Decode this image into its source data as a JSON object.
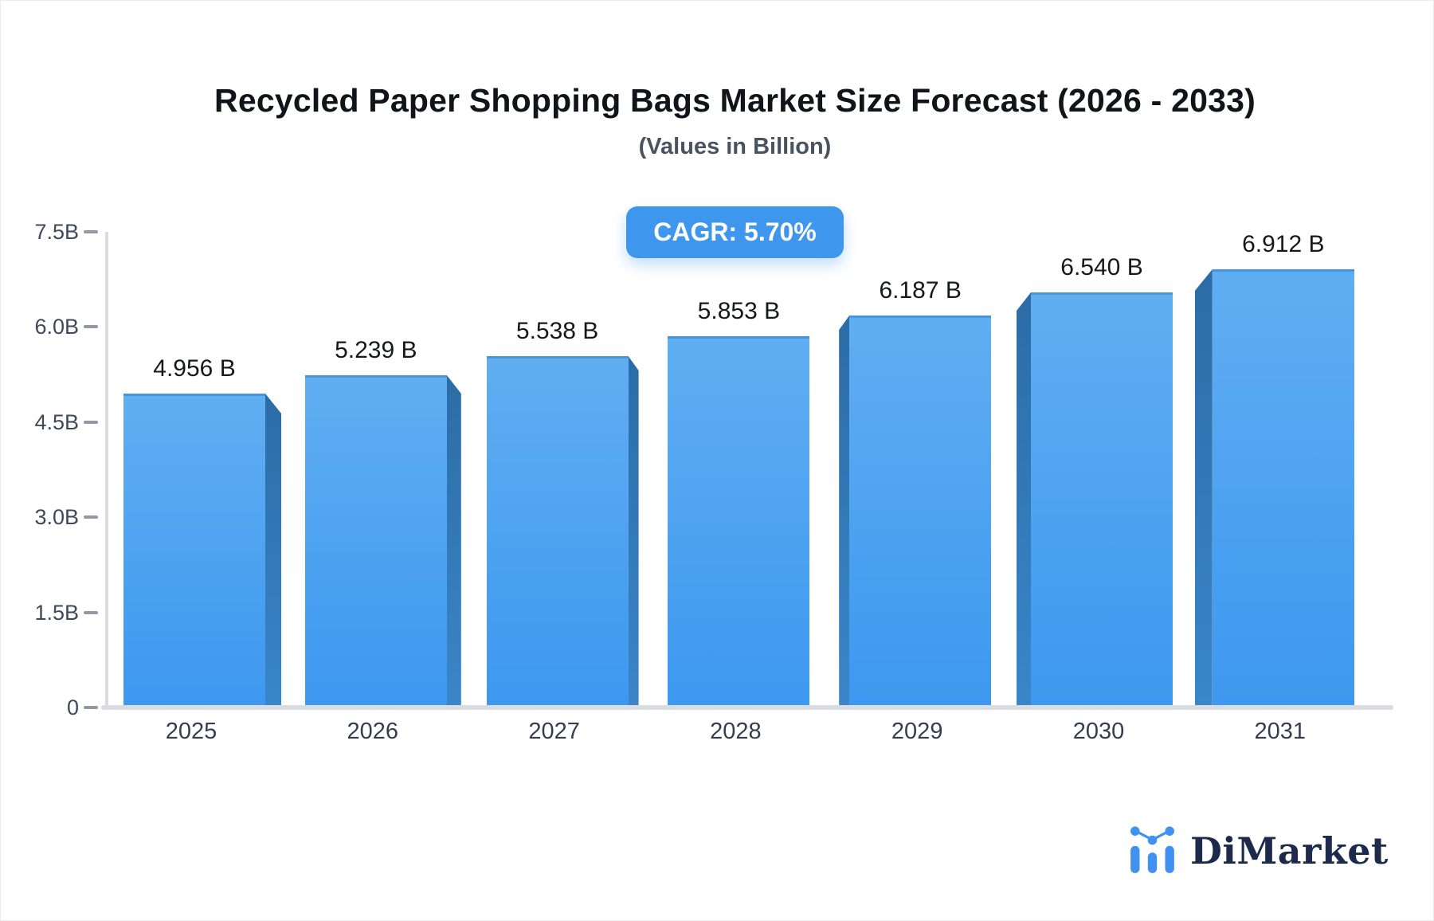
{
  "title": "Recycled Paper Shopping Bags Market Size Forecast (2026 - 2033)",
  "subtitle": "(Values in Billion)",
  "cagr_badge": "CAGR: 5.70%",
  "brand": {
    "name": "DiMarket",
    "icon": "bar-line-chart-icon"
  },
  "colors": {
    "bar_face_top": "#60aef2",
    "bar_face_bottom": "#3d98ef",
    "bar_side": "#2b6ca6",
    "badge_bg": "#3e96ed",
    "axis_line": "#d9dce1",
    "tick_dash": "#9099a4",
    "title_text": "#111418",
    "subtitle_text": "#49525f",
    "axis_label_text": "#3e4a5b",
    "year_label_text": "#333e4e",
    "value_label_text": "#16181c",
    "brand_text": "#1c2b4b",
    "brand_icon_blue": "#4191f0"
  },
  "chart_data": {
    "type": "bar",
    "categories": [
      "2025",
      "2026",
      "2027",
      "2028",
      "2029",
      "2030",
      "2031"
    ],
    "values": [
      4.956,
      5.239,
      5.538,
      5.853,
      6.187,
      6.54,
      6.912
    ],
    "value_labels": [
      "4.956 B",
      "5.239 B",
      "5.538 B",
      "5.853 B",
      "6.187 B",
      "6.540 B",
      "6.912 B"
    ],
    "title": "Recycled Paper Shopping Bags Market Size Forecast (2026 - 2033)",
    "subtitle": "(Values in Billion)",
    "xlabel": "",
    "ylabel": "",
    "ylim": [
      0,
      7.5
    ],
    "y_ticks": [
      {
        "value": 7.5,
        "label": "7.5B"
      },
      {
        "value": 6.0,
        "label": "6.0B"
      },
      {
        "value": 4.5,
        "label": "4.5B"
      },
      {
        "value": 3.0,
        "label": "3.0B"
      },
      {
        "value": 1.5,
        "label": "1.5B"
      },
      {
        "value": 0,
        "label": "0"
      }
    ],
    "grid": false,
    "legend": false,
    "bar_3d_sides": [
      "right",
      "right",
      "right",
      "none",
      "left",
      "left",
      "left"
    ],
    "bar_3d_side_widths": [
      20,
      18,
      13,
      0,
      13,
      18,
      22
    ]
  }
}
